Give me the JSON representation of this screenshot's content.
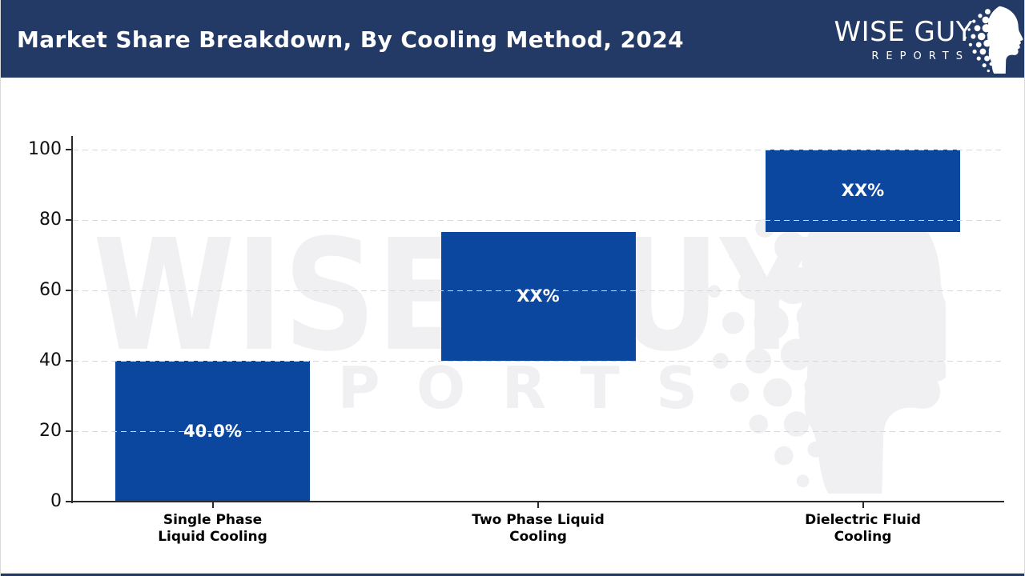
{
  "header": {
    "title": "Market Share Breakdown, By Cooling Method, 2024",
    "logo": {
      "name": "WISE GUY",
      "sub": "REPORTS"
    }
  },
  "watermark": {
    "name": "WISE GUY",
    "sub": "REPORTS"
  },
  "chart_data": {
    "type": "bar",
    "variant": "waterfall",
    "title": "Market Share Breakdown, By Cooling Method, 2024",
    "categories": [
      [
        "Single Phase",
        "Liquid Cooling"
      ],
      [
        "Two Phase Liquid",
        "Cooling"
      ],
      [
        "Dielectric Fluid",
        "Cooling"
      ]
    ],
    "segments": [
      {
        "category": "Single Phase Liquid Cooling",
        "start": 0,
        "end": 40,
        "label": "40.0%"
      },
      {
        "category": "Two Phase Liquid Cooling",
        "start": 40,
        "end": 76.6,
        "label": "XX%"
      },
      {
        "category": "Dielectric Fluid Cooling",
        "start": 76.6,
        "end": 100,
        "label": "XX%"
      }
    ],
    "yticks": [
      0,
      20,
      40,
      60,
      80,
      100
    ],
    "ylim": [
      0,
      100
    ],
    "xlabel": "",
    "ylabel": "",
    "grid": "dashed-horizontal",
    "legend": "none",
    "bar_color": "#0b479f",
    "label_color": "#ffffff"
  },
  "colors": {
    "header_bg": "#233a66",
    "bar": "#0b479f",
    "grid": "#d8d8d8",
    "axis": "#2a2a2a",
    "tick_text": "#111111"
  }
}
